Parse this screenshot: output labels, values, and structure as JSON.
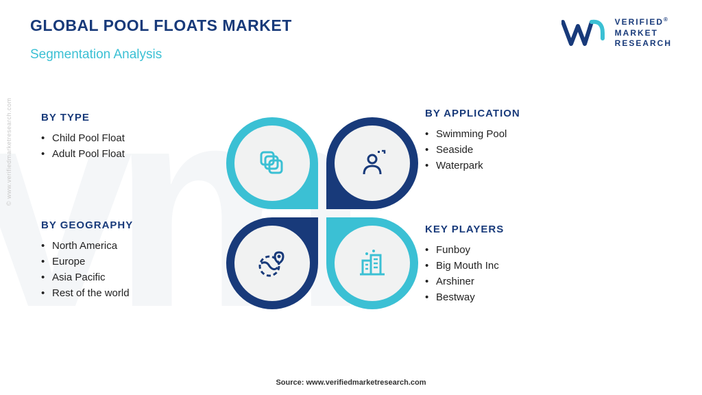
{
  "colors": {
    "navy": "#183a7a",
    "cyan": "#3bc0d4",
    "title": "#183a7a",
    "subtitle": "#3bc0d4",
    "text": "#222222",
    "icon_bg": "#f1f2f2",
    "logo_text": "#183a7a"
  },
  "header": {
    "title": "GLOBAL POOL FLOATS MARKET",
    "subtitle": "Segmentation Analysis"
  },
  "logo": {
    "line1": "VERIFIED",
    "line2": "MARKET",
    "line3": "RESEARCH",
    "registered": "®"
  },
  "segments": {
    "type": {
      "heading": "BY TYPE",
      "items": [
        "Child Pool Float",
        "Adult Pool Float"
      ]
    },
    "application": {
      "heading": "BY APPLICATION",
      "items": [
        "Swimming Pool",
        "Seaside",
        "Waterpark"
      ]
    },
    "geography": {
      "heading": "BY GEOGRAPHY",
      "items": [
        "North America",
        "Europe",
        "Asia Pacific",
        "Rest of the world"
      ]
    },
    "players": {
      "heading": "KEY PLAYERS",
      "items": [
        "Funboy",
        "Big Mouth Inc",
        "Arshiner",
        "Bestway"
      ]
    }
  },
  "petals": {
    "tl": {
      "ring_color": "#3bc0d4",
      "icon": "layers",
      "icon_color": "#3bc0d4"
    },
    "tr": {
      "ring_color": "#183a7a",
      "icon": "person",
      "icon_color": "#183a7a"
    },
    "bl": {
      "ring_color": "#183a7a",
      "icon": "globe",
      "icon_color": "#183a7a"
    },
    "br": {
      "ring_color": "#3bc0d4",
      "icon": "building",
      "icon_color": "#3bc0d4"
    }
  },
  "source": "Source: www.verifiedmarketresearch.com",
  "side_watermark": "© www.verifiedmarketresearch.com"
}
